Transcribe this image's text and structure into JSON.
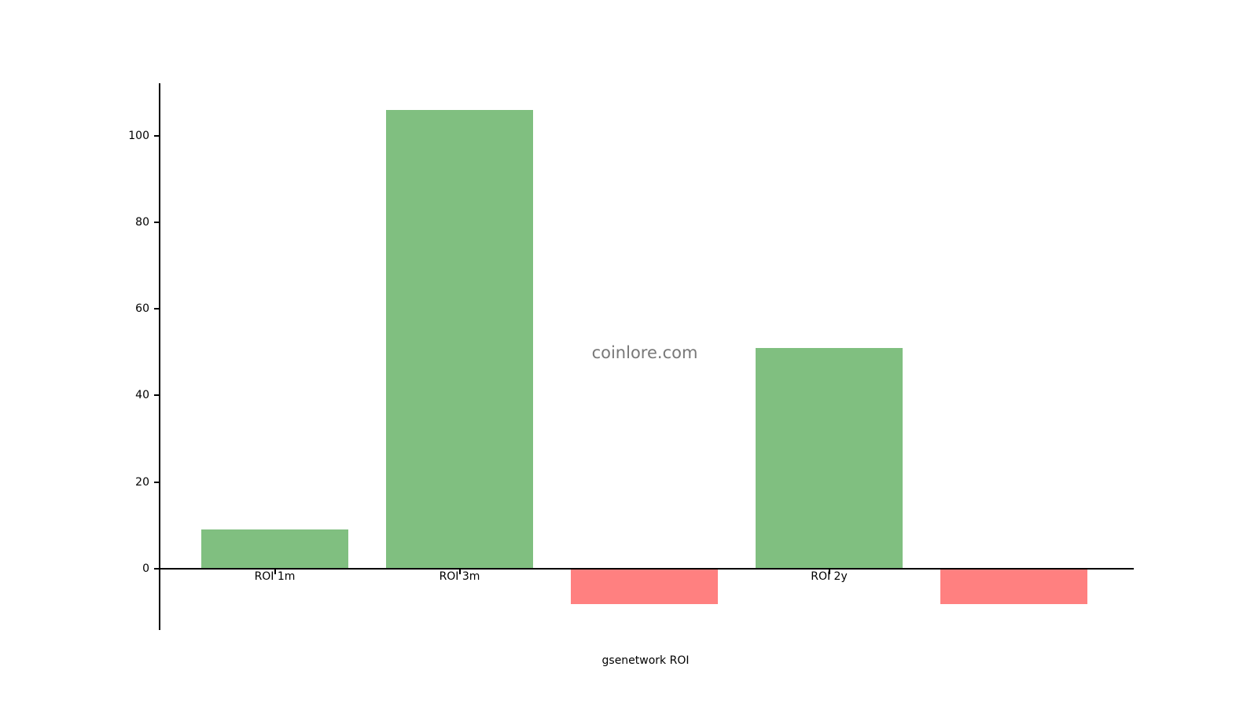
{
  "watermark": "coinlore.com",
  "xlabel": "gsenetwork ROI",
  "chart_data": {
    "type": "bar",
    "title": "",
    "xlabel": "gsenetwork ROI",
    "ylabel": "",
    "categories": [
      "ROI 1m",
      "ROI 3m",
      "",
      "ROI 2y",
      ""
    ],
    "values": [
      9,
      106,
      -8,
      51,
      -8
    ],
    "bar_colors": [
      "#80bf80",
      "#80bf80",
      "#ff8080",
      "#80bf80",
      "#ff8080"
    ],
    "positive_color": "#80bf80",
    "negative_color": "#ff8080",
    "yticks": [
      0,
      20,
      40,
      60,
      80,
      100
    ],
    "ylim": [
      -13.7,
      111.7
    ],
    "grid": false,
    "legend_position": "none",
    "watermark": "coinlore.com",
    "watermark_color": "#787878",
    "axis_color": "#000000"
  }
}
